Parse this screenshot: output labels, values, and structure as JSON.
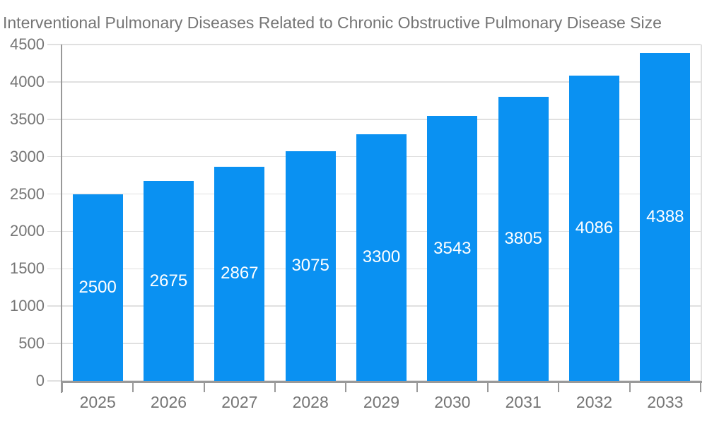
{
  "chart_data": {
    "type": "bar",
    "title": "Interventional Pulmonary Diseases Related to Chronic Obstructive Pulmonary Disease Size",
    "categories": [
      "2025",
      "2026",
      "2027",
      "2028",
      "2029",
      "2030",
      "2031",
      "2032",
      "2033"
    ],
    "values": [
      2500,
      2675,
      2867,
      3075,
      3300,
      3543,
      3805,
      4086,
      4388
    ],
    "bar_value_labels": [
      "2500",
      "2675",
      "2867",
      "3075",
      "3300",
      "3543",
      "3805",
      "4086",
      "4388"
    ],
    "xlabel": "",
    "ylabel": "",
    "ylim": [
      0,
      4500
    ],
    "yticks": [
      0,
      500,
      1000,
      1500,
      2000,
      2500,
      3000,
      3500,
      4000,
      4500
    ],
    "grid": true,
    "legend": "none",
    "colors": {
      "bar": "#0A91F2",
      "bar_label_text": "#FFFFFF",
      "axis_text": "#757575",
      "title_text": "#757575",
      "gridline": "#E0E0E0",
      "axis_line": "#999999",
      "background": "#FFFFFF"
    }
  }
}
